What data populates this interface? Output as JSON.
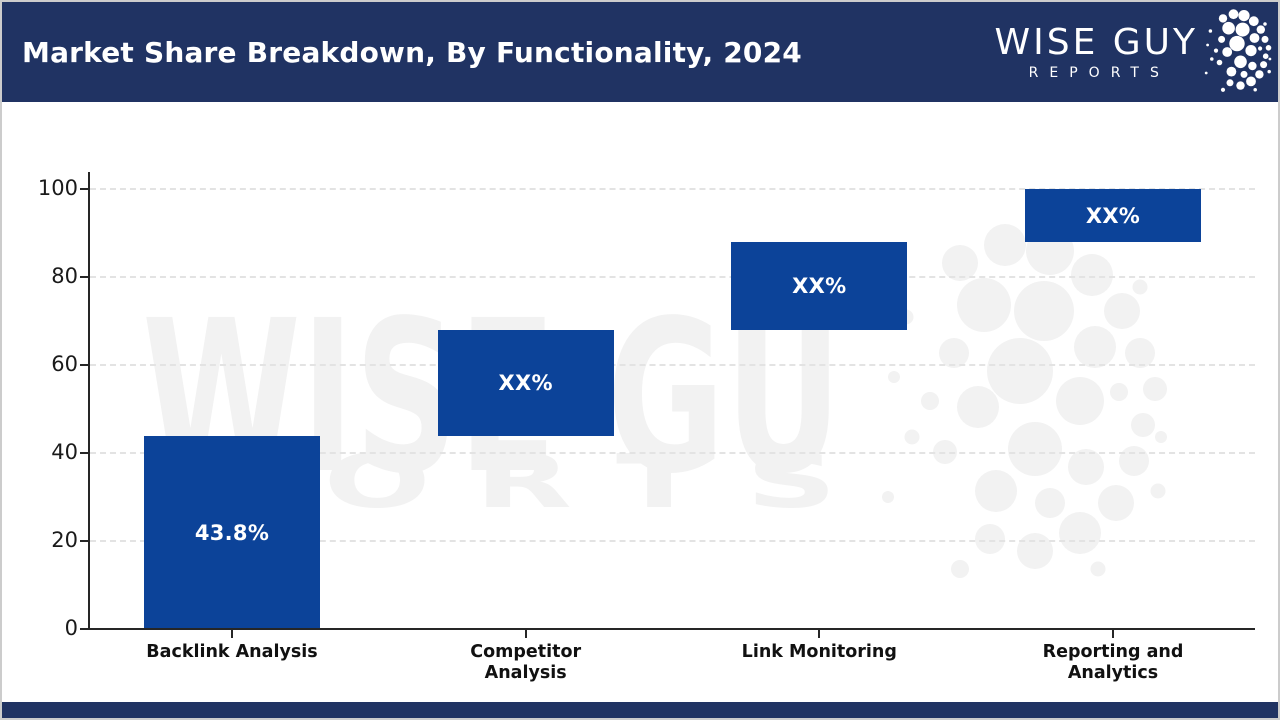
{
  "header": {
    "title": "Market Share Breakdown, By Functionality, 2024",
    "logo": {
      "line1": "WISE GUY",
      "line2": "REPORTS"
    },
    "bg_color": "#203363"
  },
  "watermark": {
    "line1": "WISE GU",
    "line2": "P O R T S",
    "color": "#f2f2f2"
  },
  "chart_data": {
    "type": "bar",
    "subtype": "waterfall",
    "title": "Market Share Breakdown, By Functionality, 2024",
    "categories": [
      [
        "Backlink Analysis"
      ],
      [
        "Competitor",
        "Analysis"
      ],
      [
        "Link Monitoring"
      ],
      [
        "Reporting and",
        "Analytics"
      ]
    ],
    "segments": [
      {
        "start": 0,
        "end": 43.8,
        "label": "43.8%"
      },
      {
        "start": 43.8,
        "end": 67.9,
        "label": "XX%"
      },
      {
        "start": 67.9,
        "end": 87.9,
        "label": "XX%"
      },
      {
        "start": 87.9,
        "end": 99.8,
        "label": "XX%"
      }
    ],
    "yticks": [
      0,
      20,
      40,
      60,
      80,
      100
    ],
    "ylim": [
      0,
      100
    ],
    "xlabel": "",
    "ylabel": "",
    "grid": true,
    "bar_color": "#0c4399",
    "axis_color": "#262626",
    "grid_color": "#e3e3e3",
    "tick_label_color": "#1a1a1a"
  }
}
